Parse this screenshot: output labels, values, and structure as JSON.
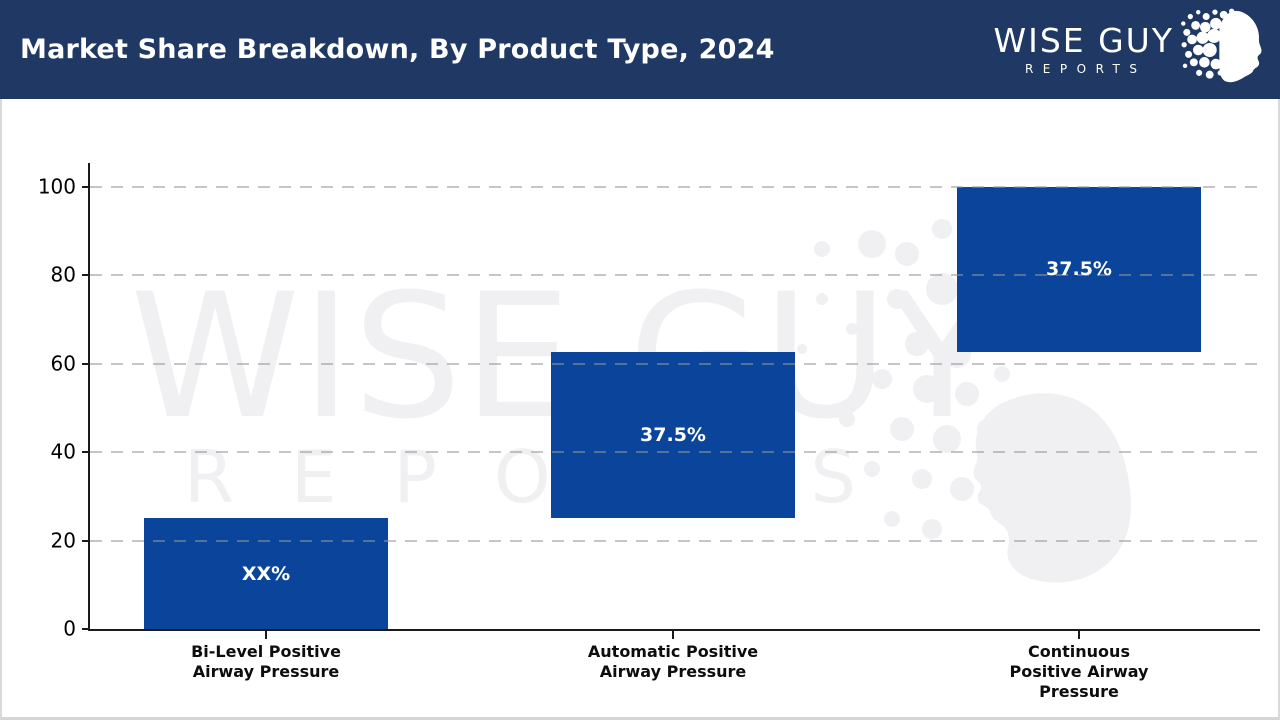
{
  "header": {
    "title": "Market Share Breakdown, By Product Type, 2024",
    "logo": {
      "name_top": "WISE GUY",
      "name_bottom": "REPORTS"
    }
  },
  "watermark": {
    "big_text": "WISE GUY",
    "small_text": "REPORTS"
  },
  "chart_data": {
    "type": "bar",
    "subtype": "floating_range_bars",
    "title": "Market Share Breakdown, By Product Type, 2024",
    "categories": [
      "Bi-Level Positive Airway Pressure",
      "Automatic Positive Airway Pressure",
      "Continuous Positive Airway Pressure"
    ],
    "category_label_lines": [
      [
        "Bi-Level Positive",
        "Airway Pressure"
      ],
      [
        "Automatic Positive",
        "Airway Pressure"
      ],
      [
        "Continuous",
        "Positive Airway",
        "Pressure"
      ]
    ],
    "series": [
      {
        "name": "Market share (%)",
        "ranges": [
          [
            0,
            25
          ],
          [
            25,
            62.5
          ],
          [
            62.5,
            100
          ]
        ]
      }
    ],
    "bar_labels": [
      "XX%",
      "37.5%",
      "37.5%"
    ],
    "yticks": [
      0,
      20,
      40,
      60,
      80,
      100
    ],
    "ylim": [
      0,
      105
    ],
    "xlabel": "",
    "ylabel": "",
    "grid": "horizontal dashed, drawn over bars",
    "legend": "none",
    "colors": {
      "bar": "#0a459b",
      "grid": "#c9c9c9",
      "axis": "#1a1a1a",
      "header_bg": "#203864",
      "header_text": "#ffffff",
      "bar_label_text": "#ffffff",
      "watermark": "#f0f0f2"
    }
  }
}
